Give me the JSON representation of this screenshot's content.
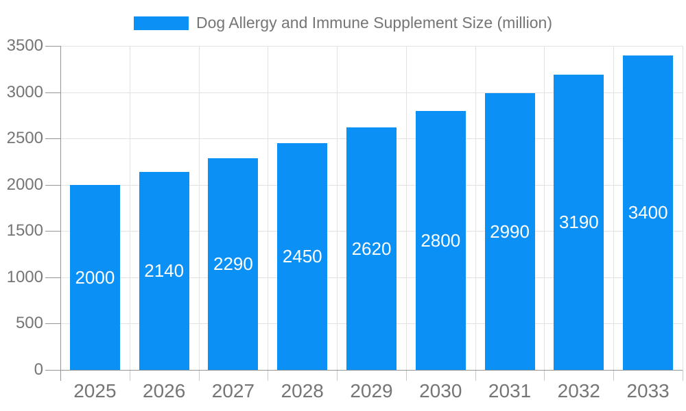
{
  "chart_data": {
    "type": "bar",
    "title": "Dog Allergy and Immune Supplement Size (million)",
    "legend_position": "top",
    "categories": [
      "2025",
      "2026",
      "2027",
      "2028",
      "2029",
      "2030",
      "2031",
      "2032",
      "2033"
    ],
    "series": [
      {
        "name": "Dog Allergy and Immune Supplement Size (million)",
        "values": [
          2000,
          2140,
          2290,
          2450,
          2620,
          2800,
          2990,
          3190,
          3400
        ]
      }
    ],
    "xlabel": "",
    "ylabel": "",
    "ylim": [
      0,
      3500
    ],
    "yticks": [
      0,
      500,
      1000,
      1500,
      2000,
      2500,
      3000,
      3500
    ],
    "grid": true,
    "bar_labels_inside": true,
    "colors": {
      "bar": "#0b90f6",
      "grid": "#e2e2e2",
      "axis": "#949494",
      "x_tick": "#c9c9c9",
      "text": "#757575",
      "bar_label": "#ffffff"
    }
  }
}
